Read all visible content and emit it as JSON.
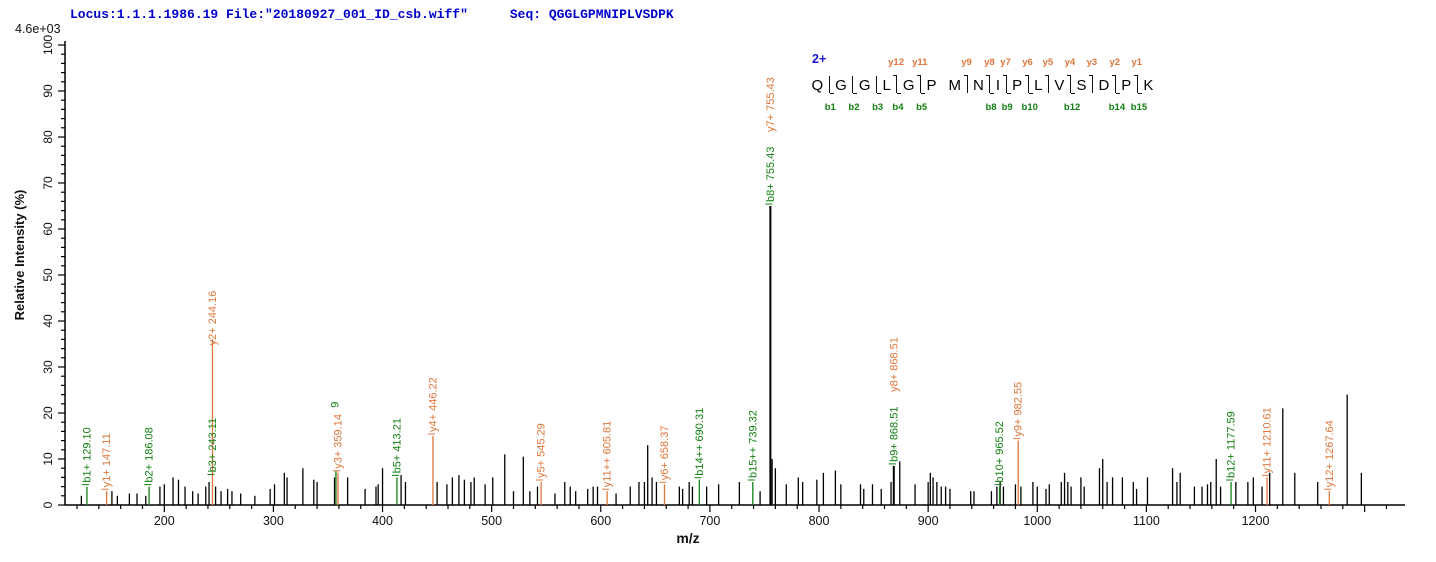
{
  "header": {
    "locus_file": "Locus:1.1.1.1986.19 File:\"20180927_001_ID_csb.wiff\"",
    "seq": "Seq: QGGLGPMNIPLVSDPK"
  },
  "scale_label": "4.6e+03",
  "colors": {
    "y_ion": "#E0763B",
    "b_ion": "#128012",
    "peak": "#000000",
    "header_blue": "#0000CD",
    "charge_blue": "#1515D0",
    "axis": "#000000"
  },
  "peptide": {
    "charge_label": "2+",
    "residues": [
      "Q",
      "G",
      "G",
      "L",
      "G",
      "P",
      "M",
      "N",
      "I",
      "P",
      "L",
      "V",
      "S",
      "D",
      "P",
      "K"
    ],
    "gap_after": 6,
    "cleavages": [
      {
        "after": 1,
        "b": "b1"
      },
      {
        "after": 2,
        "b": "b2"
      },
      {
        "after": 3,
        "b": "b3"
      },
      {
        "after": 4,
        "b": "b4",
        "y": "y12"
      },
      {
        "after": 5,
        "b": "b5",
        "y": "y11"
      },
      {
        "after": 7,
        "y": "y9"
      },
      {
        "after": 8,
        "b": "b8",
        "y": "y8"
      },
      {
        "after": 9,
        "b": "b9",
        "y": "y7"
      },
      {
        "after": 10,
        "b": "b10",
        "y": "y6"
      },
      {
        "after": 11,
        "y": "y5"
      },
      {
        "after": 12,
        "b": "b12",
        "y": "y4"
      },
      {
        "after": 13,
        "y": "y3"
      },
      {
        "after": 14,
        "b": "b14",
        "y": "y2"
      },
      {
        "after": 15,
        "b": "b15",
        "y": "y1"
      }
    ]
  },
  "chart_data": {
    "type": "bar",
    "subtype": "ms2_centroid_mass_spectrum",
    "xlabel": "m/z",
    "ylabel": "Relative  Intensity (%)",
    "x_range": [
      109,
      1337
    ],
    "ylim": [
      0,
      100
    ],
    "x_labeled_ticks": [
      200,
      300,
      400,
      500,
      600,
      700,
      800,
      900,
      1000,
      1100,
      1200
    ],
    "x_minor_tick_step": 20,
    "y_labeled_ticks": [
      0,
      10,
      20,
      30,
      40,
      50,
      60,
      70,
      80,
      90,
      100
    ],
    "y_minor_tick_step": 2,
    "absolute_intensity_scale": "4.6e+03",
    "peaks": [
      [
        124,
        2
      ],
      [
        152,
        3
      ],
      [
        157,
        2
      ],
      [
        168,
        2.5
      ],
      [
        175,
        2.5
      ],
      [
        183,
        2
      ],
      [
        196,
        4
      ],
      [
        200,
        4.5
      ],
      [
        208,
        6
      ],
      [
        213,
        5.5
      ],
      [
        219,
        4
      ],
      [
        226,
        3
      ],
      [
        231,
        2.5
      ],
      [
        238,
        4
      ],
      [
        241,
        5
      ],
      [
        247,
        4
      ],
      [
        252,
        3
      ],
      [
        258,
        3.5
      ],
      [
        262,
        3
      ],
      [
        270,
        2.5
      ],
      [
        283,
        2
      ],
      [
        297,
        3.5
      ],
      [
        301,
        4.5
      ],
      [
        310,
        7
      ],
      [
        312.5,
        6
      ],
      [
        327,
        8
      ],
      [
        337,
        5.5
      ],
      [
        340,
        5
      ],
      [
        356,
        6
      ],
      [
        368,
        6
      ],
      [
        384,
        3.5
      ],
      [
        394,
        4
      ],
      [
        396,
        4.5
      ],
      [
        400,
        8
      ],
      [
        417,
        6.5
      ],
      [
        421,
        5
      ],
      [
        450,
        5
      ],
      [
        459,
        4.5
      ],
      [
        464,
        6
      ],
      [
        470,
        6.5
      ],
      [
        475,
        5.5
      ],
      [
        481,
        5
      ],
      [
        484,
        6
      ],
      [
        494,
        4.5
      ],
      [
        501,
        6
      ],
      [
        512,
        11
      ],
      [
        520,
        3
      ],
      [
        529,
        10.5
      ],
      [
        535,
        3
      ],
      [
        542,
        4
      ],
      [
        558,
        2.5
      ],
      [
        567,
        5
      ],
      [
        572,
        4
      ],
      [
        577,
        3
      ],
      [
        588,
        3.5
      ],
      [
        593,
        4
      ],
      [
        597,
        4
      ],
      [
        614,
        2.5
      ],
      [
        627,
        4
      ],
      [
        635,
        5
      ],
      [
        640,
        5
      ],
      [
        643,
        13
      ],
      [
        647,
        6
      ],
      [
        651,
        5
      ],
      [
        672,
        4
      ],
      [
        675,
        3.5
      ],
      [
        681,
        5
      ],
      [
        684,
        4
      ],
      [
        697,
        4
      ],
      [
        708,
        4.5
      ],
      [
        727,
        5
      ],
      [
        746,
        3
      ],
      [
        757,
        10
      ],
      [
        760,
        8
      ],
      [
        770,
        4.5
      ],
      [
        781,
        6
      ],
      [
        785,
        5
      ],
      [
        798,
        5.5
      ],
      [
        804,
        7
      ],
      [
        815,
        7.5
      ],
      [
        820,
        4.5
      ],
      [
        838,
        4.5
      ],
      [
        841,
        3.5
      ],
      [
        849,
        4.5
      ],
      [
        857,
        3.5
      ],
      [
        866,
        5
      ],
      [
        874,
        9.5
      ],
      [
        888,
        4.5
      ],
      [
        900,
        5
      ],
      [
        902,
        7
      ],
      [
        904.5,
        6
      ],
      [
        908,
        5
      ],
      [
        912,
        4
      ],
      [
        916,
        4
      ],
      [
        920,
        3.5
      ],
      [
        939,
        3
      ],
      [
        942,
        3
      ],
      [
        958,
        3
      ],
      [
        963,
        4
      ],
      [
        966,
        5
      ],
      [
        969,
        4
      ],
      [
        980,
        4.5
      ],
      [
        985,
        4
      ],
      [
        996,
        5
      ],
      [
        1000,
        4
      ],
      [
        1008,
        3.5
      ],
      [
        1011,
        4.5
      ],
      [
        1022,
        5
      ],
      [
        1025,
        7
      ],
      [
        1028,
        5
      ],
      [
        1031,
        4
      ],
      [
        1040,
        6
      ],
      [
        1043,
        4
      ],
      [
        1057,
        8
      ],
      [
        1060,
        10
      ],
      [
        1064,
        5
      ],
      [
        1069,
        6
      ],
      [
        1078,
        6
      ],
      [
        1088,
        5
      ],
      [
        1091,
        3.5
      ],
      [
        1101,
        6
      ],
      [
        1124,
        8
      ],
      [
        1128,
        5
      ],
      [
        1131,
        7
      ],
      [
        1144,
        4
      ],
      [
        1151,
        4
      ],
      [
        1156,
        4.5
      ],
      [
        1159,
        5
      ],
      [
        1164,
        10
      ],
      [
        1168,
        4
      ],
      [
        1182,
        5
      ],
      [
        1193,
        5
      ],
      [
        1198,
        6
      ],
      [
        1206,
        4
      ],
      [
        1213,
        7
      ],
      [
        1225,
        21
      ],
      [
        1236,
        7
      ],
      [
        1257,
        5
      ],
      [
        1284,
        24
      ],
      [
        1297,
        7
      ],
      [
        129.1,
        4,
        "b",
        [
          [
            "b1+ 129.10",
            "b"
          ]
        ]
      ],
      [
        147.11,
        3,
        "y",
        [
          [
            "y1+ 147.11",
            "y"
          ]
        ]
      ],
      [
        186.08,
        4,
        "b",
        [
          [
            "b2+ 186.08",
            "b"
          ]
        ]
      ],
      [
        244.16,
        36,
        "y",
        [
          [
            "b3+ 243.11",
            "b",
            -133
          ],
          [
            "y2+ 244.16",
            "y",
            -6
          ]
        ]
      ],
      [
        357.3,
        7.5,
        "b"
      ],
      [
        359.14,
        7,
        "y",
        [
          [
            "y3+ 359.14",
            "y"
          ],
          [
            "9",
            "b",
            65,
            -3
          ]
        ]
      ],
      [
        413.21,
        6,
        "b",
        [
          [
            "b5+ 413.21",
            "b"
          ]
        ]
      ],
      [
        446.22,
        15,
        "y",
        [
          [
            "y4+ 446.22",
            "y"
          ]
        ]
      ],
      [
        545.29,
        5,
        "y",
        [
          [
            "y5+ 545.29",
            "y"
          ]
        ]
      ],
      [
        605.81,
        3,
        "y",
        [
          [
            "y11++ 605.81",
            "y"
          ]
        ]
      ],
      [
        658.37,
        4.5,
        "y",
        [
          [
            "y6+ 658.37",
            "y"
          ]
        ]
      ],
      [
        690.31,
        5.5,
        "b",
        [
          [
            "b14++ 690.31",
            "b"
          ]
        ]
      ],
      [
        739.32,
        5,
        "b",
        [
          [
            "b15++ 739.32",
            "b"
          ]
        ]
      ],
      [
        755.43,
        65,
        "k",
        [
          [
            "b8+ 755.43",
            "b"
          ],
          [
            "y7+ 755.43",
            "y"
          ]
        ],
        2
      ],
      [
        868.51,
        8.5,
        "k",
        [
          [
            "b9+ 868.51",
            "b"
          ],
          [
            "y8+ 868.51",
            "y"
          ]
        ],
        2
      ],
      [
        965.52,
        4,
        "b",
        [
          [
            "b10+ 965.52",
            "b"
          ]
        ]
      ],
      [
        982.55,
        14,
        "y",
        [
          [
            "y9+ 982.55",
            "y"
          ]
        ]
      ],
      [
        1177.59,
        5,
        "b",
        [
          [
            "b12+ 1177.59",
            "b"
          ]
        ]
      ],
      [
        1210.61,
        6,
        "y",
        [
          [
            "y11+ 1210.61",
            "y"
          ]
        ]
      ],
      [
        1267.64,
        3,
        "y",
        [
          [
            "y12+ 1267.64",
            "y"
          ]
        ]
      ]
    ]
  }
}
